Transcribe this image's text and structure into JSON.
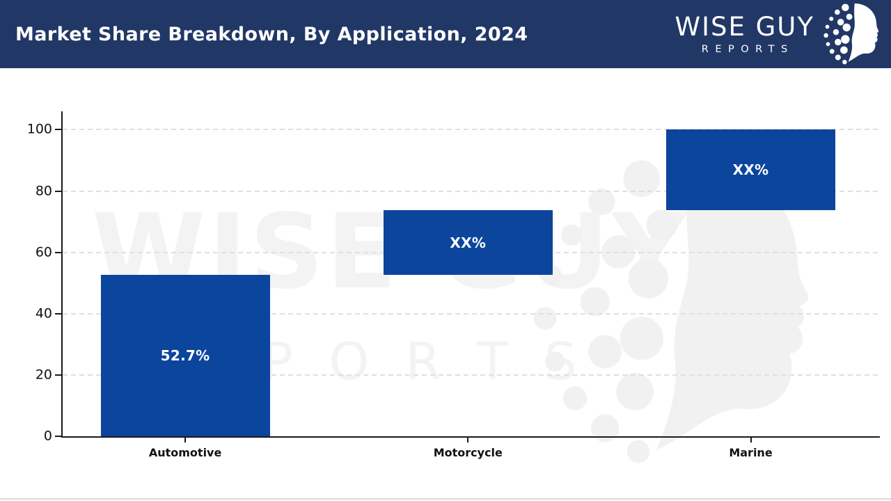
{
  "header": {
    "title": "Market Share Breakdown, By Application, 2024",
    "logo": {
      "line1": "WISE GUY",
      "line2": "REPORTS"
    }
  },
  "icons": {
    "logo_face": "dotted-head-profile",
    "watermark_face": "dotted-head-profile"
  },
  "watermark": {
    "line1": "WISE GUY",
    "line2": "REPORTS"
  },
  "chart_data": {
    "type": "bar",
    "subtype": "segmented-waterfall",
    "title": "Market Share Breakdown, By Application, 2024",
    "categories": [
      "Automotive",
      "Motorcycle",
      "Marine"
    ],
    "bars": [
      {
        "category": "Automotive",
        "start": 0,
        "end": 52.7,
        "label": "52.7%"
      },
      {
        "category": "Motorcycle",
        "start": 52.7,
        "end": 73.7,
        "label": "XX%"
      },
      {
        "category": "Marine",
        "start": 73.7,
        "end": 100,
        "label": "XX%"
      }
    ],
    "y_ticks": [
      0,
      20,
      40,
      60,
      80,
      100
    ],
    "ylim": [
      0,
      106
    ],
    "xlabel": "",
    "ylabel": "",
    "grid": "horizontal-dashed",
    "legend": "none",
    "colors": {
      "header_bg": "#213766",
      "bar": "#0c459c",
      "bar_label": "#ffffff",
      "grid": "#e0e0e0",
      "axis": "#1a1a1a",
      "watermark": "#f3f3f3",
      "divider": "#d9d9d9"
    }
  }
}
